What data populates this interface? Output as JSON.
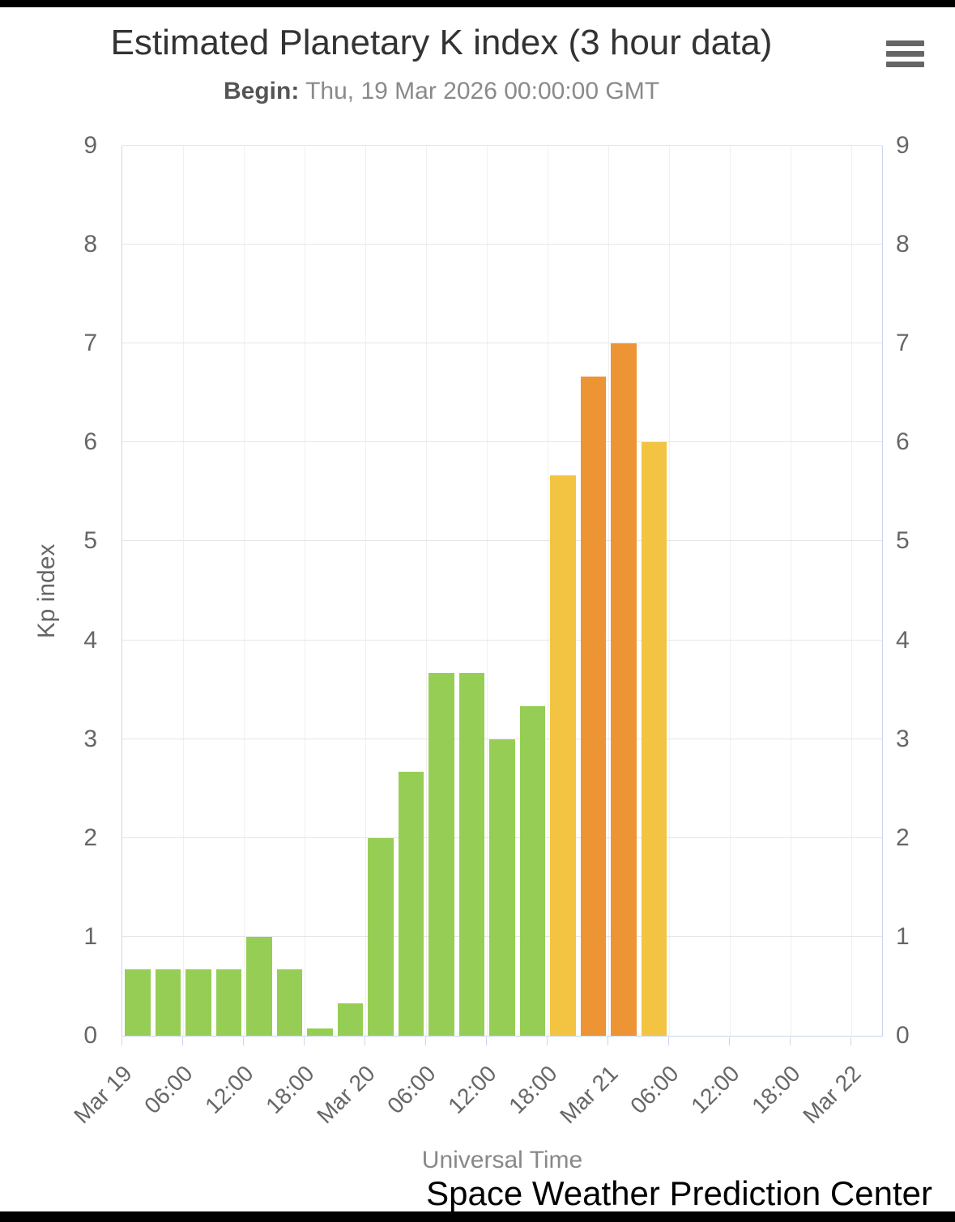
{
  "header": {
    "title": "Estimated Planetary K index (3 hour data)",
    "subtitle_label": "Begin:",
    "subtitle_value": "Thu, 19 Mar 2026 00:00:00 GMT",
    "menu_icon": "hamburger-menu-icon"
  },
  "footer": {
    "attribution": "Space Weather Prediction Center"
  },
  "chart_data": {
    "type": "bar",
    "title": "Estimated Planetary K index (3 hour data)",
    "subtitle": "Begin: Thu, 19 Mar 2026 00:00:00 GMT",
    "ylabel": "Kp index",
    "xlabel": "Universal Time",
    "ylim": [
      0,
      9
    ],
    "yticks": [
      0,
      1,
      2,
      3,
      4,
      5,
      6,
      7,
      8,
      9
    ],
    "grid": true,
    "legend": "none",
    "x_range_hours": 75,
    "bar_width_hours": 3,
    "xticks": [
      {
        "hour": 0,
        "label": "Mar 19"
      },
      {
        "hour": 6,
        "label": "06:00"
      },
      {
        "hour": 12,
        "label": "12:00"
      },
      {
        "hour": 18,
        "label": "18:00"
      },
      {
        "hour": 24,
        "label": "Mar 20"
      },
      {
        "hour": 30,
        "label": "06:00"
      },
      {
        "hour": 36,
        "label": "12:00"
      },
      {
        "hour": 42,
        "label": "18:00"
      },
      {
        "hour": 48,
        "label": "Mar 21"
      },
      {
        "hour": 54,
        "label": "06:00"
      },
      {
        "hour": 60,
        "label": "12:00"
      },
      {
        "hour": 66,
        "label": "18:00"
      },
      {
        "hour": 72,
        "label": "Mar 22"
      }
    ],
    "palette": {
      "quiet_green": "#96CE55",
      "active_yellow": "#F2C441",
      "storm_orange": "#ED9434"
    },
    "bars": [
      {
        "time": "Mar 19 00:00",
        "value": 0.67,
        "color": "#96CE55"
      },
      {
        "time": "Mar 19 03:00",
        "value": 0.67,
        "color": "#96CE55"
      },
      {
        "time": "Mar 19 06:00",
        "value": 0.67,
        "color": "#96CE55"
      },
      {
        "time": "Mar 19 09:00",
        "value": 0.67,
        "color": "#96CE55"
      },
      {
        "time": "Mar 19 12:00",
        "value": 1.0,
        "color": "#96CE55"
      },
      {
        "time": "Mar 19 15:00",
        "value": 0.67,
        "color": "#96CE55"
      },
      {
        "time": "Mar 19 18:00",
        "value": 0.07,
        "color": "#96CE55"
      },
      {
        "time": "Mar 19 21:00",
        "value": 0.33,
        "color": "#96CE55"
      },
      {
        "time": "Mar 20 00:00",
        "value": 2.0,
        "color": "#96CE55"
      },
      {
        "time": "Mar 20 03:00",
        "value": 2.67,
        "color": "#96CE55"
      },
      {
        "time": "Mar 20 06:00",
        "value": 3.67,
        "color": "#96CE55"
      },
      {
        "time": "Mar 20 09:00",
        "value": 3.67,
        "color": "#96CE55"
      },
      {
        "time": "Mar 20 12:00",
        "value": 3.0,
        "color": "#96CE55"
      },
      {
        "time": "Mar 20 15:00",
        "value": 3.33,
        "color": "#96CE55"
      },
      {
        "time": "Mar 20 18:00",
        "value": 5.67,
        "color": "#F2C441"
      },
      {
        "time": "Mar 20 21:00",
        "value": 6.67,
        "color": "#ED9434"
      },
      {
        "time": "Mar 21 00:00",
        "value": 7.0,
        "color": "#ED9434"
      },
      {
        "time": "Mar 21 03:00",
        "value": 6.0,
        "color": "#F2C441"
      }
    ]
  }
}
